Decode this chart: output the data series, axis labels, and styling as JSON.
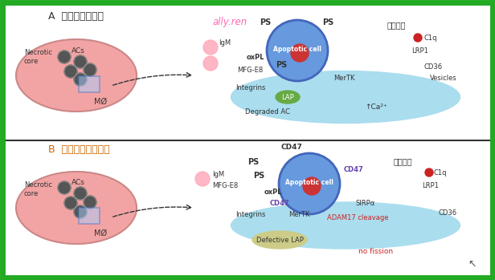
{
  "fig_width": 6.16,
  "fig_height": 3.49,
  "dpi": 100,
  "bg_color": "#FFFFFF",
  "border_color": "#22AA22",
  "border_linewidth": 5,
  "panel_a_title": "A  有效的胞葬作用",
  "panel_b_title": "B  有缺陷的胞葬作用",
  "panel_a_title_color": "#333333",
  "panel_b_title_color": "#CC6600",
  "watermark": "ally.ren",
  "watermark_color": "#FF69B4",
  "separator_color": "#333333",
  "tissue_color": "#F2A4A4",
  "tissue_edge_color": "#CC8888",
  "ac_color": "#555555",
  "mac_body_color": "#AADDEE",
  "apoptotic_color": "#6699DD",
  "apoptotic_edge": "#4466BB",
  "nucleus_color": "#CC3333",
  "snowflake_color": "#FFAABB",
  "lap_color": "#66AA44",
  "defective_lap_color": "#CCCC88",
  "c1q_color": "#CC2222",
  "zoom_rect_color": "#4477CC",
  "zoom_rect_fill": "#AACCFF",
  "no_fission_color": "#CC2222",
  "adam17_color": "#CC2222",
  "cd47_color": "#6644AA"
}
